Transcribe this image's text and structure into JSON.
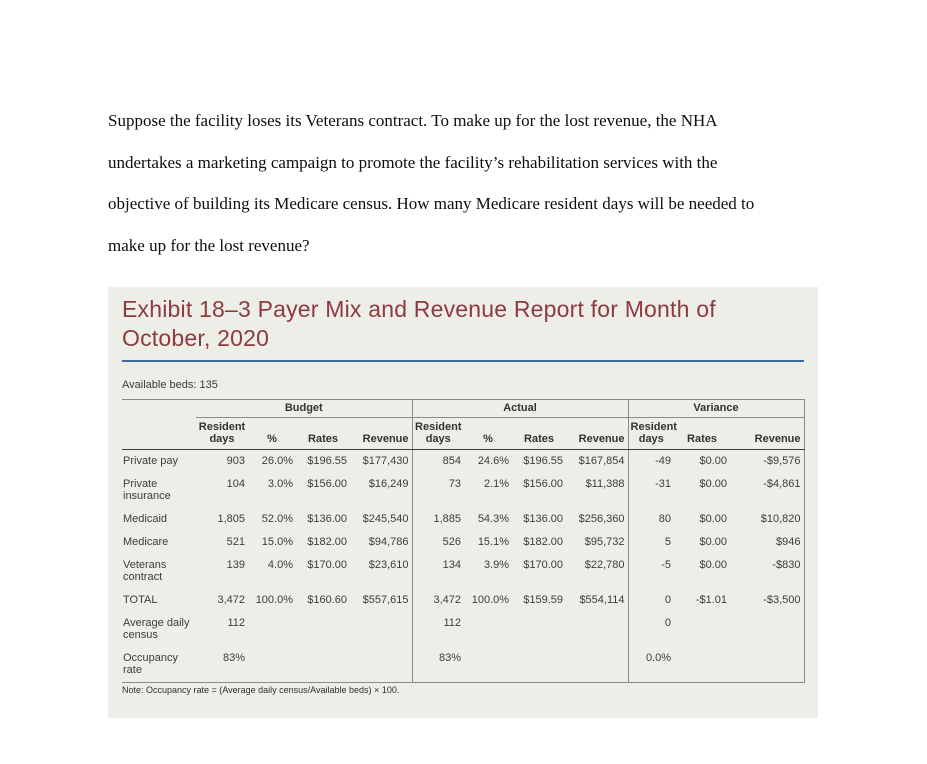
{
  "question": {
    "lines": [
      "Suppose the facility loses its Veterans contract. To make up for the lost revenue, the NHA",
      "undertakes a marketing campaign to promote the facility’s rehabilitation services with the",
      "objective of building its Medicare census. How many Medicare resident days will be needed to",
      "make up for the lost revenue?"
    ]
  },
  "exhibit": {
    "title": "Exhibit 18–3 Payer Mix and Revenue Report for Month of October, 2020",
    "available_beds": "Available beds: 135",
    "note": "Note: Occupancy rate = (Average daily census/Available beds) × 100.",
    "table": {
      "groups": [
        "Budget",
        "Actual",
        "Variance"
      ],
      "sub_headers": {
        "budget": [
          "Resident days",
          "%",
          "Rates",
          "Revenue"
        ],
        "actual": [
          "Resident days",
          "%",
          "Rates",
          "Revenue"
        ],
        "variance": [
          "Resident days",
          "Rates",
          "Revenue"
        ]
      },
      "rows": [
        {
          "label": "Private pay",
          "cells": [
            "903",
            "26.0%",
            "$196.55",
            "$177,430",
            "854",
            "24.6%",
            "$196.55",
            "$167,854",
            "-49",
            "$0.00",
            "-$9,576"
          ]
        },
        {
          "label": "Private insurance",
          "cells": [
            "104",
            "3.0%",
            "$156.00",
            "$16,249",
            "73",
            "2.1%",
            "$156.00",
            "$11,388",
            "-31",
            "$0.00",
            "-$4,861"
          ]
        },
        {
          "label": "Medicaid",
          "cells": [
            "1,805",
            "52.0%",
            "$136.00",
            "$245,540",
            "1,885",
            "54.3%",
            "$136.00",
            "$256,360",
            "80",
            "$0.00",
            "$10,820"
          ]
        },
        {
          "label": "Medicare",
          "cells": [
            "521",
            "15.0%",
            "$182.00",
            "$94,786",
            "526",
            "15.1%",
            "$182.00",
            "$95,732",
            "5",
            "$0.00",
            "$946"
          ]
        },
        {
          "label": "Veterans contract",
          "cells": [
            "139",
            "4.0%",
            "$170.00",
            "$23,610",
            "134",
            "3.9%",
            "$170.00",
            "$22,780",
            "-5",
            "$0.00",
            "-$830"
          ]
        },
        {
          "label": "TOTAL",
          "cells": [
            "3,472",
            "100.0%",
            "$160.60",
            "$557,615",
            "3,472",
            "100.0%",
            "$159.59",
            "$554,114",
            "0",
            "-$1.01",
            "-$3,500"
          ]
        },
        {
          "label": "Average daily census",
          "cells": [
            "112",
            "",
            "",
            "",
            "112",
            "",
            "",
            "",
            "0",
            "",
            ""
          ]
        },
        {
          "label": "Occupancy rate",
          "cells": [
            "83%",
            "",
            "",
            "",
            "83%",
            "",
            "",
            "",
            "0.0%",
            "",
            ""
          ]
        }
      ]
    }
  },
  "colors": {
    "exhibit_bg": "#edeee8",
    "title_red": "#8e3a3f",
    "rule_blue": "#3a6b9c",
    "border_gray": "#8a8a8a",
    "border_dark": "#3f3f3f"
  }
}
